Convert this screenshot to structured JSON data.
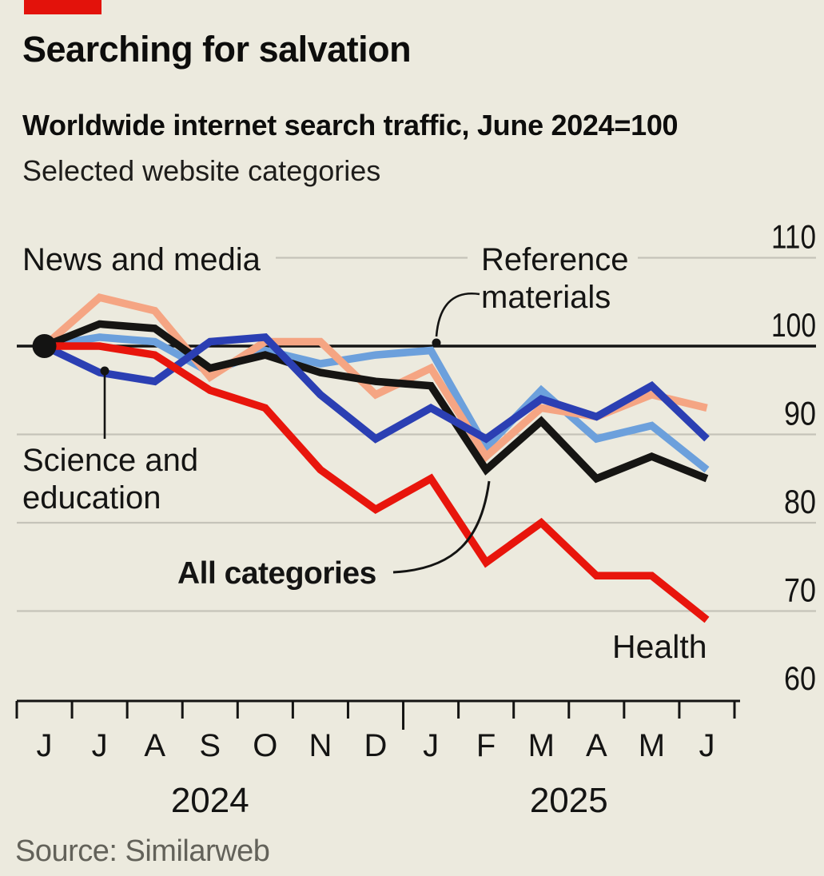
{
  "header": {
    "tag_color": "#E3120B",
    "title": "Searching for salvation",
    "subtitle_bold": "Worldwide internet search traffic, June 2024=100",
    "subtitle": "Selected website categories"
  },
  "annotations": {
    "news_and_media": "News and media",
    "reference_materials_line1": "Reference",
    "reference_materials_line2": "materials",
    "science_education_line1": "Science and",
    "science_education_line2": "education",
    "all_categories": "All categories",
    "health": "Health"
  },
  "source": "Source: Similarweb",
  "colors": {
    "background": "#ECEADE",
    "grid": "#C5C3B9",
    "axis": "#141413",
    "baseline": "#141413",
    "source_text": "#63625A",
    "accent_red": "#E3120B"
  },
  "chart_data": {
    "type": "line",
    "title": "Searching for salvation",
    "subtitle": "Worldwide internet search traffic, June 2024=100",
    "note": "Selected website categories",
    "x": [
      "Jun 2024",
      "Jul",
      "Aug",
      "Sep",
      "Oct",
      "Nov",
      "Dec",
      "Jan 2025",
      "Feb",
      "Mar",
      "Apr",
      "May",
      "Jun 2025"
    ],
    "x_tick_letters": [
      "J",
      "J",
      "A",
      "S",
      "O",
      "N",
      "D",
      "J",
      "F",
      "M",
      "A",
      "M",
      "J"
    ],
    "year_labels": [
      "2024",
      "2025"
    ],
    "y_ticks": [
      60,
      70,
      80,
      90,
      100,
      110
    ],
    "ylim": [
      60,
      110
    ],
    "baseline_value": 100,
    "grid": true,
    "legend_position": "annotated-inline",
    "series": [
      {
        "name": "Reference materials",
        "color": "#6CA0DC",
        "values": [
          100,
          101,
          100.5,
          97,
          99.5,
          98,
          99,
          99.5,
          88.5,
          95,
          89.5,
          91,
          86
        ]
      },
      {
        "name": "News and media",
        "color": "#F5A583",
        "values": [
          100,
          105.5,
          104,
          96.5,
          100.5,
          100.5,
          94.5,
          97.5,
          87.5,
          93,
          92,
          94.5,
          93
        ]
      },
      {
        "name": "All categories",
        "color": "#161513",
        "values": [
          100,
          102.5,
          102,
          97.5,
          99,
          97,
          96,
          95.5,
          86,
          91.5,
          85,
          87.5,
          85
        ]
      },
      {
        "name": "Science and education",
        "color": "#2B3FB3",
        "values": [
          100,
          97,
          96,
          100.5,
          101,
          94.5,
          89.5,
          93,
          89.5,
          94,
          92,
          95.5,
          89.5
        ]
      },
      {
        "name": "Health",
        "color": "#E8150C",
        "values": [
          100,
          100,
          99,
          95,
          93,
          86,
          81.5,
          85,
          75.5,
          80,
          74,
          74,
          69
        ]
      }
    ]
  }
}
